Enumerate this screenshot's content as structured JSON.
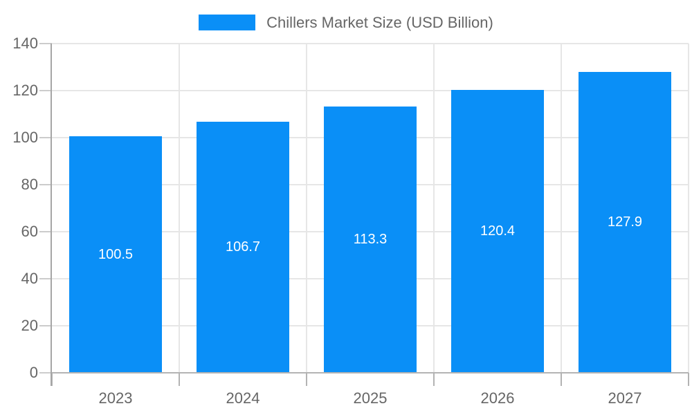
{
  "chart_data": {
    "type": "bar",
    "title": "Chillers Market Size (USD Billion)",
    "categories": [
      "2023",
      "2024",
      "2025",
      "2026",
      "2027"
    ],
    "values": [
      100.5,
      106.7,
      113.3,
      120.4,
      127.9
    ],
    "value_labels": [
      "100.5",
      "106.7",
      "113.3",
      "120.4",
      "127.9"
    ],
    "ylim": [
      0,
      140
    ],
    "yticks": [
      0,
      20,
      40,
      60,
      80,
      100,
      120,
      140
    ],
    "ytick_labels": [
      "0",
      "20",
      "40",
      "60",
      "80",
      "100",
      "120",
      "140"
    ],
    "grid": true,
    "legend_position": "top-center",
    "value_label_position": "center-of-bar",
    "colors": {
      "bar": "#0a8ff7",
      "bar_label_text": "#ffffff",
      "title_text": "#666666",
      "axis_label_text": "#666666",
      "gridline": "#e6e6e6",
      "y_axis_line": "#a6a6a6",
      "x_axis_line": "#b3b3b3",
      "tick": "#cccccc",
      "background": "#ffffff"
    }
  }
}
